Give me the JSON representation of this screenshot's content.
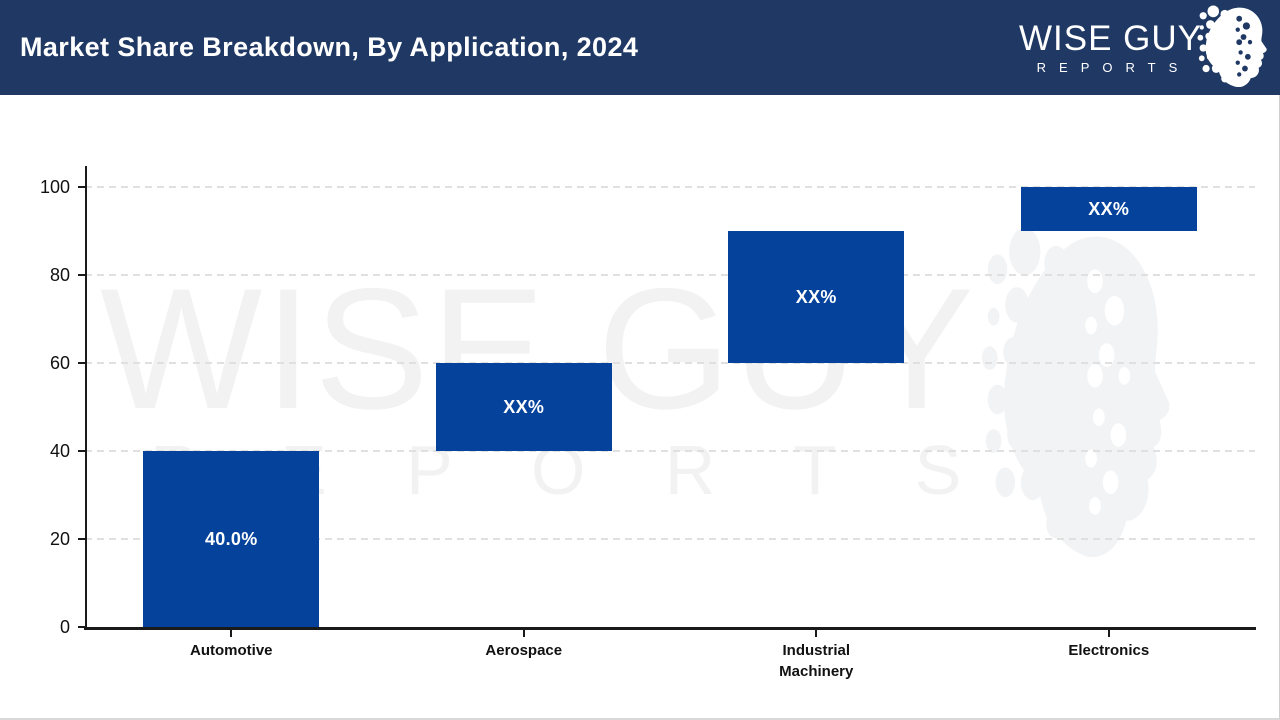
{
  "header": {
    "title": "Market Share Breakdown, By Application, 2024",
    "bg_color": "#1f3864",
    "logo": {
      "line1": "WISE GUY",
      "line2": "REPORTS"
    }
  },
  "watermark": {
    "line1": "WISE GUY",
    "line2": "R E P O R T S"
  },
  "colors": {
    "bar": "#05429b",
    "header_bg": "#1f3864",
    "gridline": "#e0e0e0",
    "axis": "#1a1a1a",
    "watermark": "#f2f2f2",
    "watermark_head": "#f2f3f5"
  },
  "chart_data": {
    "type": "bar",
    "subtype": "waterfall",
    "title": "Market Share Breakdown, By Application, 2024",
    "categories": [
      "Automotive",
      "Aerospace",
      "Industrial\nMachinery",
      "Electronics"
    ],
    "segments": [
      {
        "category": "Automotive",
        "start": 0,
        "end": 40,
        "label": "40.0%"
      },
      {
        "category": "Aerospace",
        "start": 40,
        "end": 60,
        "label": "XX%"
      },
      {
        "category": "Industrial Machinery",
        "start": 60,
        "end": 90,
        "label": "XX%"
      },
      {
        "category": "Electronics",
        "start": 90,
        "end": 100,
        "label": "XX%"
      }
    ],
    "yticks": [
      0,
      20,
      40,
      60,
      80,
      100
    ],
    "ylim": [
      0,
      105
    ],
    "xlabel": "",
    "ylabel": "",
    "grid": "horizontal-dashed",
    "legend": "none"
  }
}
